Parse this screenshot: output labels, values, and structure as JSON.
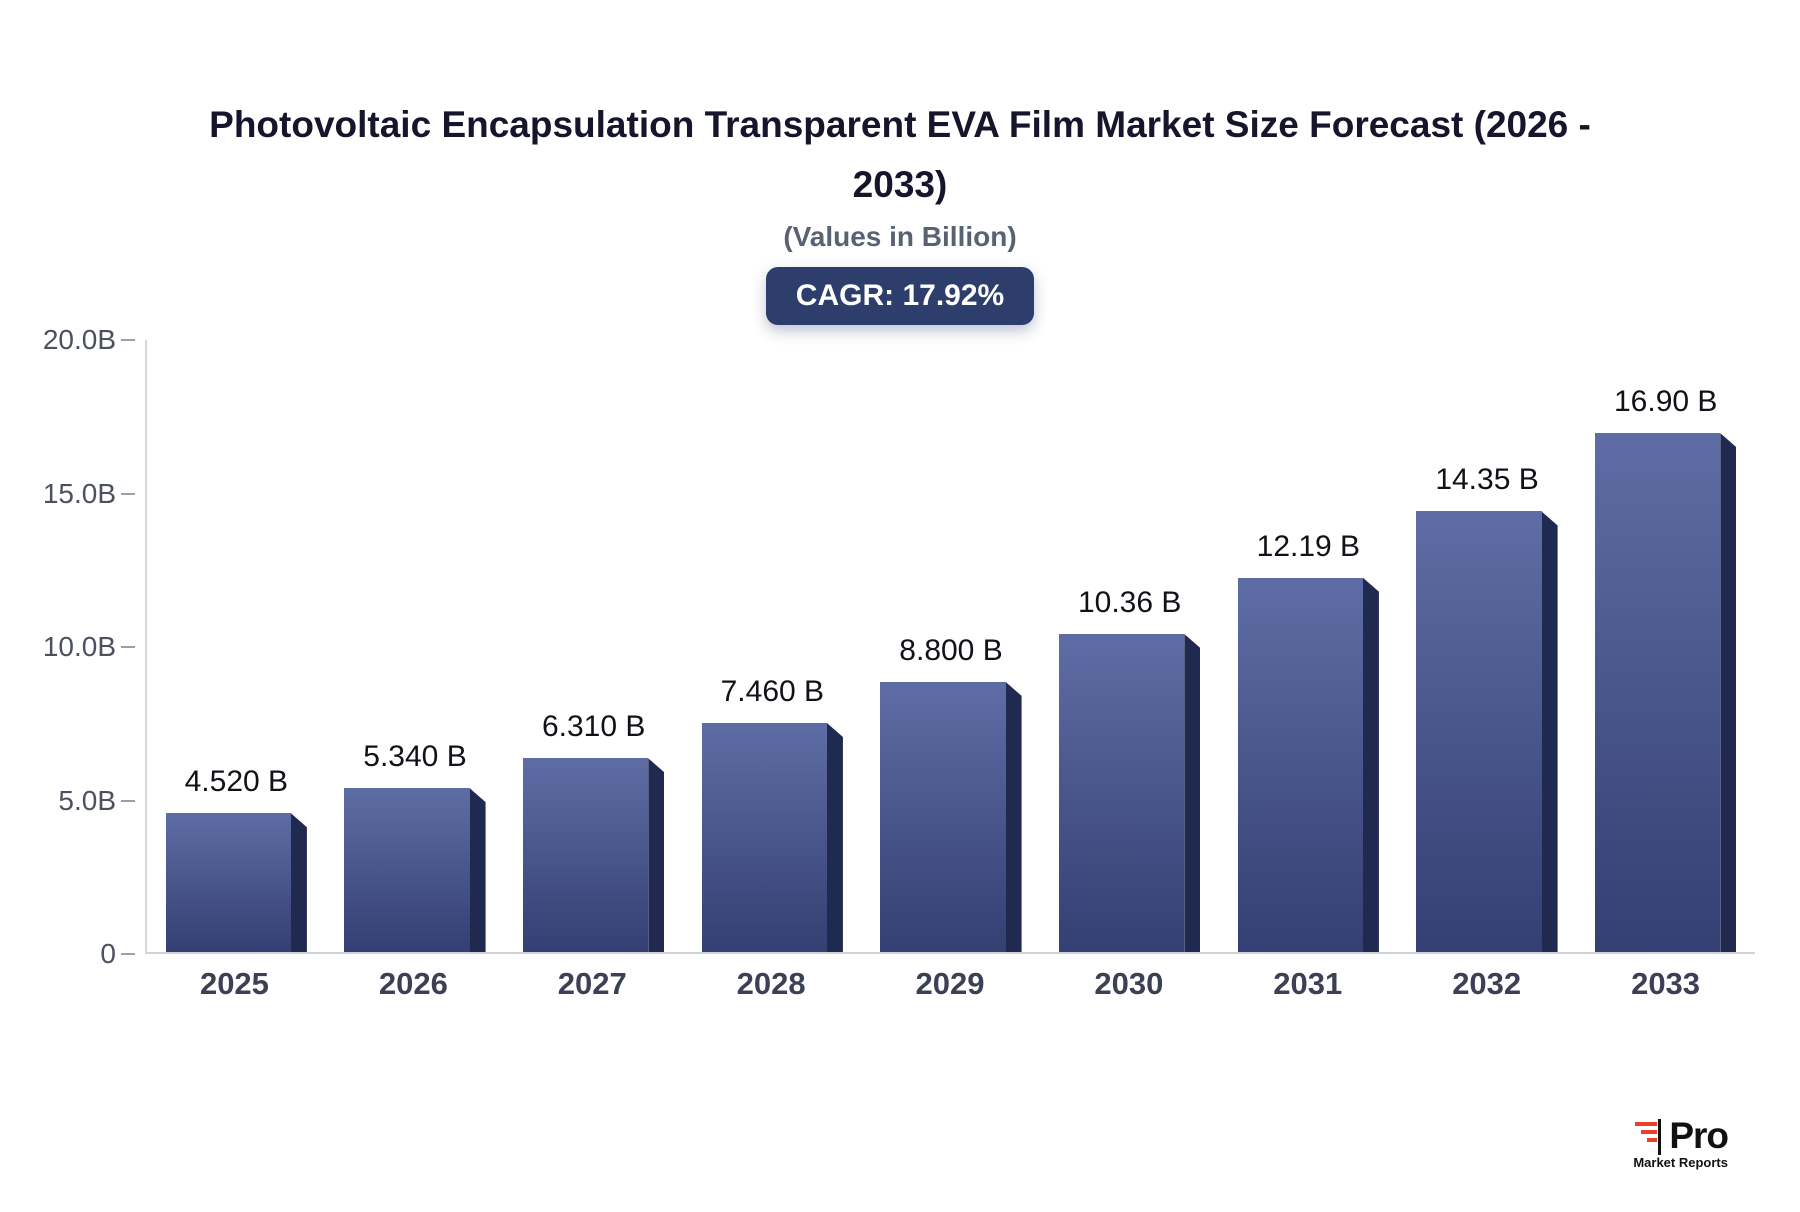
{
  "header": {
    "title": "Photovoltaic Encapsulation Transparent EVA Film Market Size Forecast (2026 - 2033)",
    "subtitle": "(Values in Billion)",
    "cagr_badge": "CAGR: 17.92%"
  },
  "chart_data": {
    "type": "bar",
    "title": "Photovoltaic Encapsulation Transparent EVA Film Market Size Forecast (2026 - 2033)",
    "subtitle": "(Values in Billion)",
    "cagr": "CAGR: 17.92%",
    "categories": [
      "2025",
      "2026",
      "2027",
      "2028",
      "2029",
      "2030",
      "2031",
      "2032",
      "2033"
    ],
    "values": [
      4.52,
      5.34,
      6.31,
      7.46,
      8.8,
      10.36,
      12.19,
      14.35,
      16.9
    ],
    "value_labels": [
      "4.520 B",
      "5.340 B",
      "6.310 B",
      "7.460 B",
      "8.800 B",
      "10.36 B",
      "12.19 B",
      "14.35 B",
      "16.90 B"
    ],
    "ylim": [
      0,
      20
    ],
    "yticks": [
      {
        "label": "20.0B",
        "value": 20
      },
      {
        "label": "15.0B",
        "value": 15
      },
      {
        "label": "10.0B",
        "value": 10
      },
      {
        "label": "5.0B",
        "value": 5
      },
      {
        "label": "0",
        "value": 0
      }
    ],
    "grid": false,
    "legend": false,
    "colors": {
      "bar_top": "#5e6da5",
      "bar_bottom": "#343f72",
      "bar_side": "#20294f",
      "badge_bg": "#2d3e6d",
      "axis_line": "#d4d7de",
      "tick_text": "#4b5160",
      "value_label_text": "#101218",
      "xlabel_text": "#3c4054",
      "logo_red": "#e8402a"
    }
  },
  "branding": {
    "logo_text": "Pro",
    "logo_subtext": "Market Reports"
  }
}
